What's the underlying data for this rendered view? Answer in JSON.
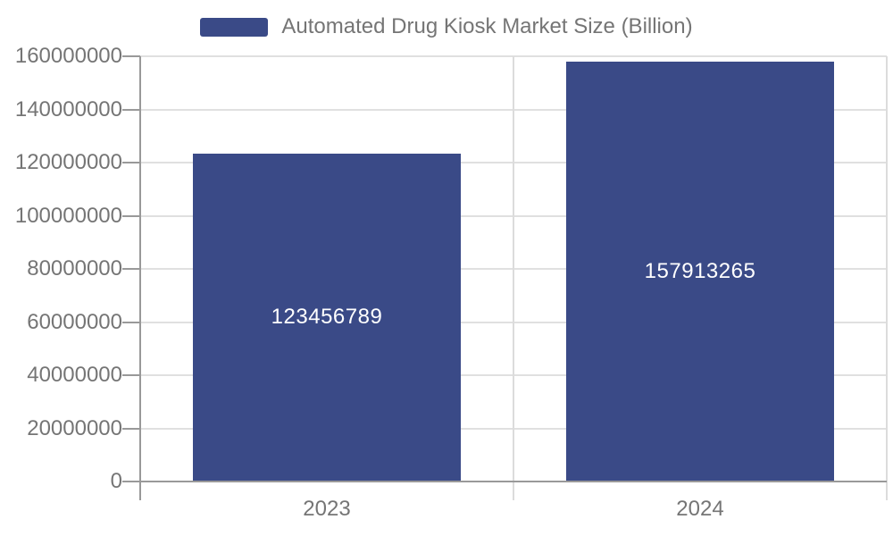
{
  "colors": {
    "bar": "#3A4A87",
    "axis_line": "#999999",
    "grid_line": "#E0E0E0",
    "boundary_line": "#DCDCDC",
    "tick_label": "#757575",
    "bar_label": "#FFFFFF",
    "background": "#FFFFFF"
  },
  "legend": {
    "label": "Automated Drug Kiosk Market Size (Billion)",
    "position": "top-center",
    "swatch_icon": "rounded-rect"
  },
  "chart_data": {
    "type": "bar",
    "title": "Automated Drug Kiosk Market Size (Billion)",
    "categories": [
      "2023",
      "2024"
    ],
    "series": [
      {
        "name": "Automated Drug Kiosk Market Size (Billion)",
        "values": [
          123456789,
          157913265
        ]
      }
    ],
    "data_labels": [
      "123456789",
      "157913265"
    ],
    "data_label_position": "inside-center",
    "yticks": [
      0,
      20000000,
      40000000,
      60000000,
      80000000,
      100000000,
      120000000,
      140000000,
      160000000
    ],
    "ytick_labels": [
      "0",
      "20000000",
      "40000000",
      "60000000",
      "80000000",
      "100000000",
      "120000000",
      "140000000",
      "160000000"
    ],
    "ylim": [
      0,
      160000000
    ],
    "xlabel": "",
    "ylabel": "",
    "grid": true,
    "legend_position": "top-center"
  }
}
